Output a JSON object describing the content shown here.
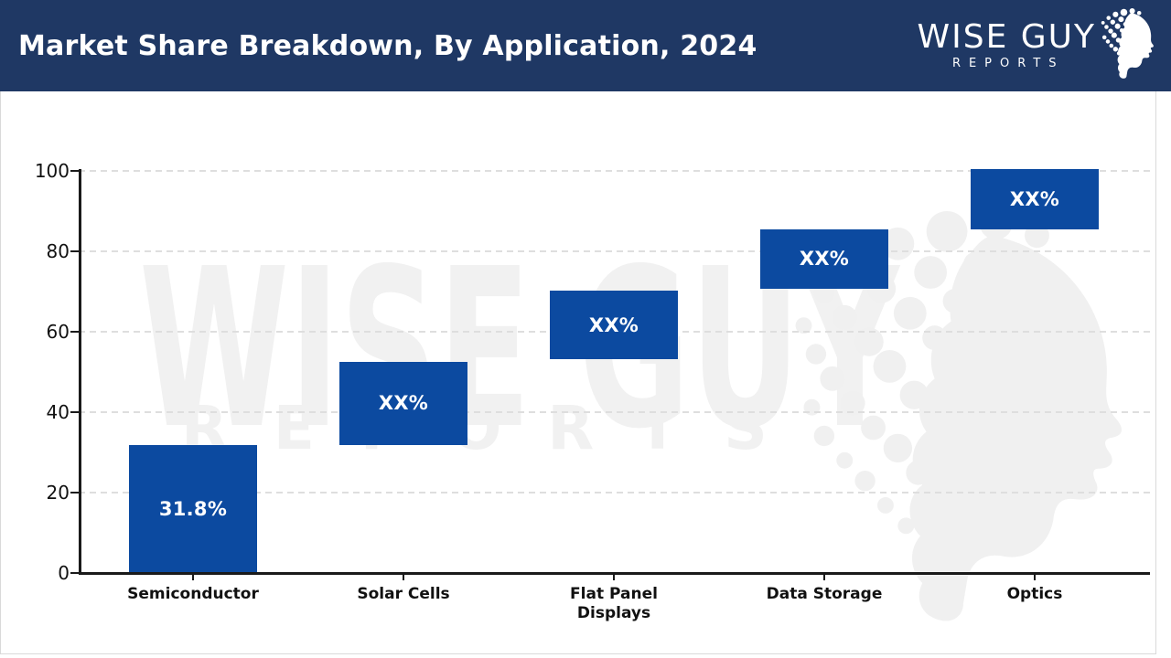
{
  "header": {
    "title": "Market Share Breakdown, By Application, 2024",
    "logo": {
      "line1": "WISE GUY",
      "line2": "REPORTS"
    }
  },
  "watermark": {
    "line1": "WISE GUY",
    "line2": "REPORTS"
  },
  "chart_data": {
    "type": "bar",
    "subtype": "waterfall-stacked-percent",
    "title": "Market Share Breakdown, By Application, 2024",
    "categories": [
      "Semiconductor",
      "Solar Cells",
      "Flat Panel Displays",
      "Data Storage",
      "Optics"
    ],
    "segments": [
      {
        "category": "Semiconductor",
        "start": 0,
        "end": 31.8,
        "label": "31.8%"
      },
      {
        "category": "Solar Cells",
        "start": 31.8,
        "end": 52.6,
        "label": "XX%"
      },
      {
        "category": "Flat Panel Displays",
        "start": 53.2,
        "end": 70.2,
        "label": "XX%"
      },
      {
        "category": "Data Storage",
        "start": 70.7,
        "end": 85.5,
        "label": "XX%"
      },
      {
        "category": "Optics",
        "start": 85.5,
        "end": 100.4,
        "label": "XX%"
      }
    ],
    "xlabel": "",
    "ylabel": "",
    "ylim": [
      0,
      100
    ],
    "yticks": [
      0,
      20,
      40,
      60,
      80,
      100
    ],
    "grid": "horizontal-dashed",
    "legend": "none",
    "bar_color": "#0c4aa0",
    "bar_label_color": "#ffffff"
  },
  "colors": {
    "header_bg": "#1f3864",
    "bar": "#0c4aa0",
    "grid": "#dedede",
    "axis": "#1a1a1a",
    "watermark": "#f1f1f1",
    "border": "#d9d9d9"
  }
}
